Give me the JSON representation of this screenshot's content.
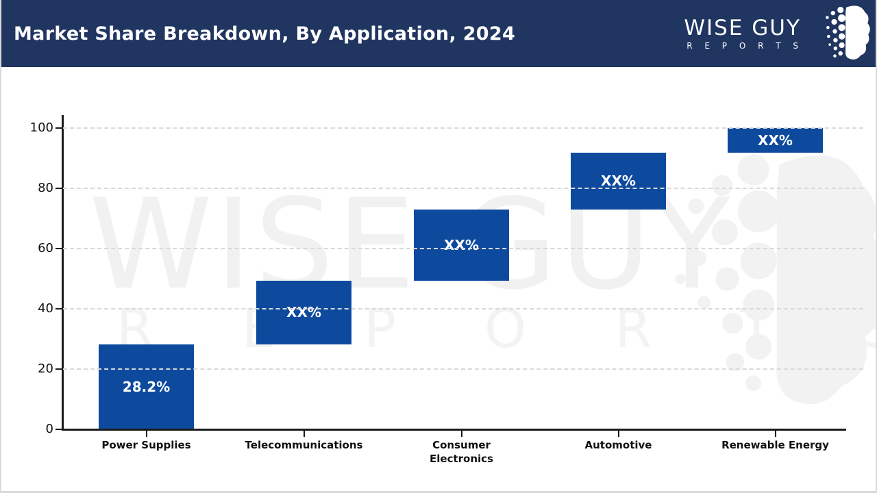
{
  "header": {
    "title": "Market Share Breakdown, By Application, 2024",
    "logo": {
      "line1": "WISE GUY",
      "line2": "R E P O R T S"
    }
  },
  "watermark": {
    "line1": "WISE GUY",
    "line2": "R E P O R T S"
  },
  "colors": {
    "header_bg": "#203560",
    "bar": "#0d4a9e",
    "grid": "#d9d9d9",
    "axis": "#1a1a1a",
    "title_text": "#ffffff",
    "bar_label_text": "#ffffff",
    "watermark": "#f1f1f1"
  },
  "chart_data": {
    "type": "bar",
    "subtype": "waterfall",
    "title": "Market Share Breakdown, By Application, 2024",
    "xlabel": "",
    "ylabel": "",
    "ylim": [
      0,
      104
    ],
    "yticks": [
      0,
      20,
      40,
      60,
      80,
      100
    ],
    "grid": "horizontal-dashed-above-bars",
    "legend": "none",
    "categories": [
      "Power Supplies",
      "Telecommunications",
      "Consumer\nElectronics",
      "Automotive",
      "Renewable Energy"
    ],
    "segments": [
      {
        "category": "Power Supplies",
        "start": 0,
        "end": 28.2,
        "size": 28.2,
        "label": "28.2%"
      },
      {
        "category": "Telecommunications",
        "start": 28.2,
        "end": 49.3,
        "size": 21.1,
        "label": "XX%"
      },
      {
        "category": "Consumer Electronics",
        "start": 49.3,
        "end": 73.0,
        "size": 23.7,
        "label": "XX%"
      },
      {
        "category": "Automotive",
        "start": 73.0,
        "end": 91.8,
        "size": 18.8,
        "label": "XX%"
      },
      {
        "category": "Renewable Energy",
        "start": 91.8,
        "end": 100.0,
        "size": 8.2,
        "label": "XX%"
      }
    ]
  }
}
